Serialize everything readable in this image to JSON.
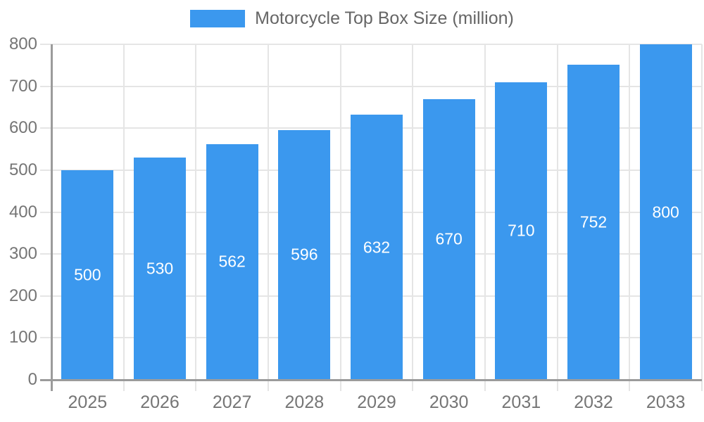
{
  "legend": {
    "label": "Motorcycle Top Box Size (million)"
  },
  "chart_data": {
    "type": "bar",
    "title": "Motorcycle Top Box Size (million)",
    "categories": [
      "2025",
      "2026",
      "2027",
      "2028",
      "2029",
      "2030",
      "2031",
      "2032",
      "2033"
    ],
    "values": [
      500,
      530,
      562,
      596,
      632,
      670,
      710,
      752,
      800
    ],
    "xlabel": "",
    "ylabel": "",
    "ylim": [
      0,
      800
    ],
    "ytick_step": 100,
    "grid": true,
    "legend_position": "top",
    "value_label_position": "inside-middle",
    "colors": {
      "bar": "#3B98EE",
      "gridline": "#E5E5E5",
      "axis_line": "#9B9B9B",
      "tick_label": "#757575",
      "value_label": "#FFFFFF",
      "legend_text": "#666666"
    }
  }
}
